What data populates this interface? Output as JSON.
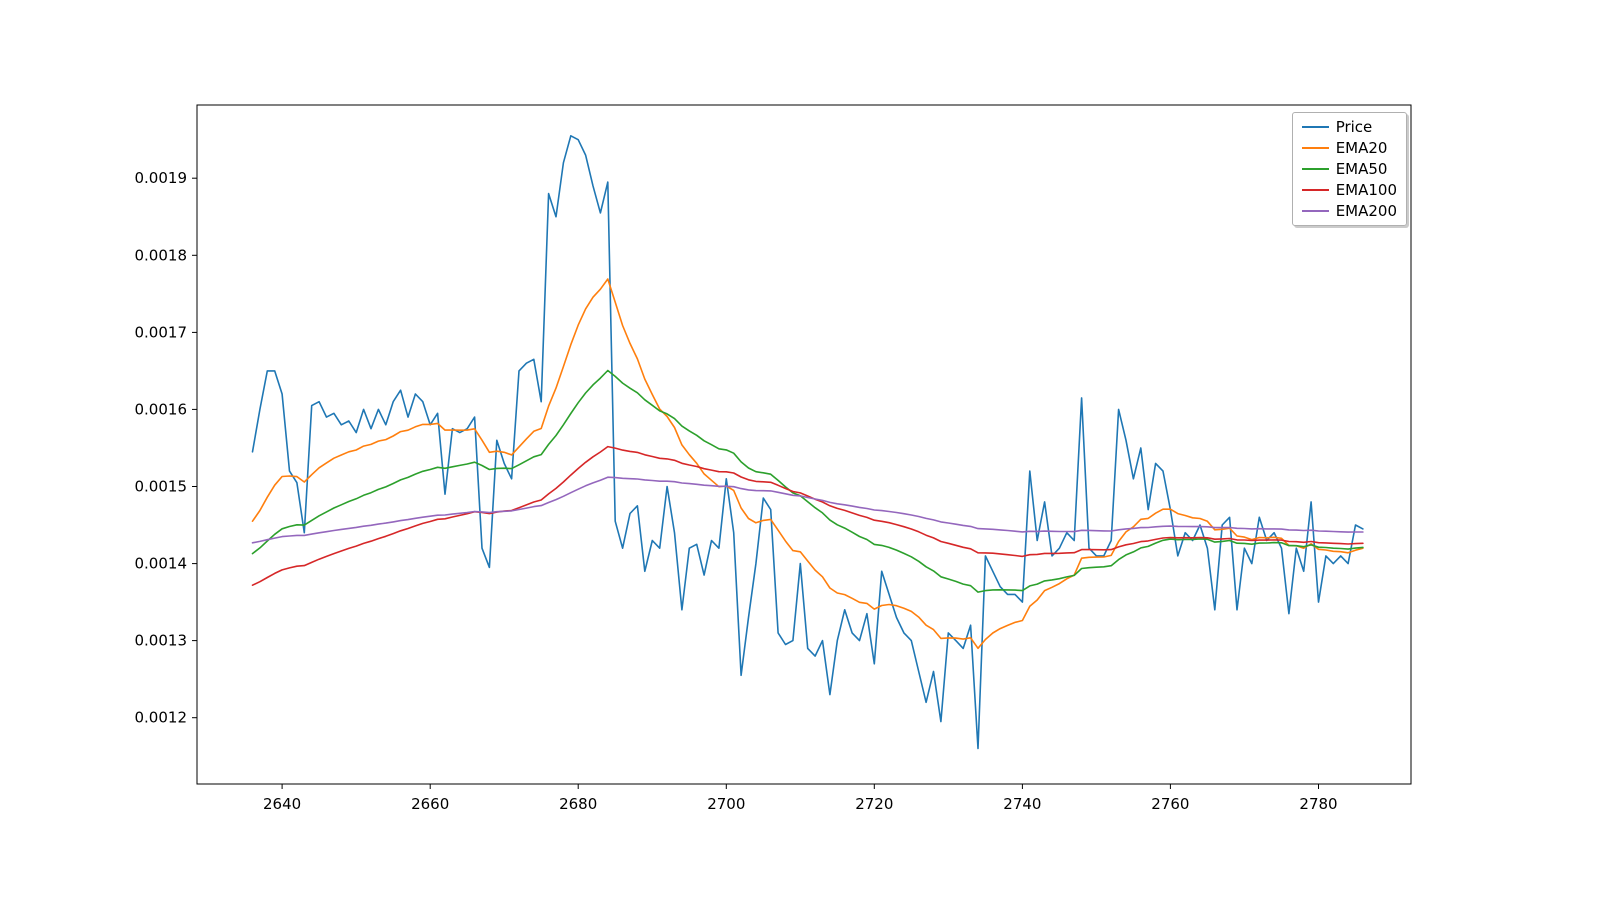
{
  "figure": {
    "background": "#ffffff",
    "plot_border_color": "#000000",
    "tick_color": "#000000",
    "text_color": "#000000"
  },
  "chart_data": {
    "type": "line",
    "title": "",
    "xlabel": "",
    "ylabel": "",
    "grid": false,
    "legend_position": "upper right",
    "xlim": [
      2628.5,
      2792.5
    ],
    "ylim": [
      0.001114,
      0.001995
    ],
    "x_ticks": [
      2640,
      2660,
      2680,
      2700,
      2720,
      2740,
      2760,
      2780
    ],
    "x_tick_labels": [
      "2640",
      "2660",
      "2680",
      "2700",
      "2720",
      "2740",
      "2760",
      "2780"
    ],
    "y_ticks": [
      0.0012,
      0.0013,
      0.0014,
      0.0015,
      0.0016,
      0.0017,
      0.0018,
      0.0019
    ],
    "y_tick_labels": [
      "0.0012",
      "0.0013",
      "0.0014",
      "0.0015",
      "0.0016",
      "0.0017",
      "0.0018",
      "0.0019"
    ],
    "x_start": 2636,
    "x_step": 1,
    "value_scale": 0.0001,
    "series": [
      {
        "name": "Price",
        "color": "#1f77b4",
        "kind": "raw",
        "values": [
          15.45,
          16.0,
          16.5,
          16.5,
          16.2,
          15.2,
          15.05,
          14.4,
          16.05,
          16.1,
          15.9,
          15.95,
          15.8,
          15.85,
          15.7,
          16.0,
          15.75,
          16.0,
          15.8,
          16.1,
          16.25,
          15.9,
          16.2,
          16.1,
          15.8,
          15.95,
          14.9,
          15.75,
          15.7,
          15.75,
          15.9,
          14.2,
          13.95,
          15.6,
          15.3,
          15.1,
          16.5,
          16.6,
          16.65,
          16.1,
          18.8,
          18.5,
          19.2,
          19.55,
          19.5,
          19.3,
          18.9,
          18.55,
          18.95,
          14.55,
          14.2,
          14.65,
          14.75,
          13.9,
          14.3,
          14.2,
          15.0,
          14.4,
          13.4,
          14.2,
          14.25,
          13.85,
          14.3,
          14.2,
          15.1,
          14.4,
          12.55,
          13.3,
          14.0,
          14.85,
          14.7,
          13.1,
          12.95,
          13.0,
          14.0,
          12.9,
          12.8,
          13.0,
          12.3,
          13.0,
          13.4,
          13.1,
          13.0,
          13.35,
          12.7,
          13.9,
          13.6,
          13.3,
          13.1,
          13.0,
          12.6,
          12.2,
          12.6,
          11.95,
          13.1,
          13.0,
          12.9,
          13.2,
          11.6,
          14.1,
          13.9,
          13.7,
          13.6,
          13.6,
          13.5,
          15.2,
          14.3,
          14.8,
          14.1,
          14.2,
          14.4,
          14.3,
          16.15,
          14.2,
          14.1,
          14.1,
          14.3,
          16.0,
          15.6,
          15.1,
          15.5,
          14.7,
          15.3,
          15.2,
          14.7,
          14.1,
          14.4,
          14.3,
          14.5,
          14.2,
          13.4,
          14.5,
          14.6,
          13.4,
          14.2,
          14.0,
          14.6,
          14.3,
          14.4,
          14.2,
          13.35,
          14.2,
          13.9,
          14.8,
          13.5,
          14.1,
          14.0,
          14.1,
          14.0,
          14.5,
          14.45
        ]
      },
      {
        "name": "EMA20",
        "color": "#ff7f0e",
        "kind": "ema_of_price",
        "period": 20,
        "seed_value": 14.55
      },
      {
        "name": "EMA50",
        "color": "#2ca02c",
        "kind": "ema_of_price",
        "period": 50,
        "seed_value": 14.13
      },
      {
        "name": "EMA100",
        "color": "#d62728",
        "kind": "ema_of_price",
        "period": 100,
        "seed_value": 13.72
      },
      {
        "name": "EMA200",
        "color": "#9467bd",
        "kind": "ema_of_price",
        "period": 200,
        "seed_value": 14.27
      }
    ]
  }
}
